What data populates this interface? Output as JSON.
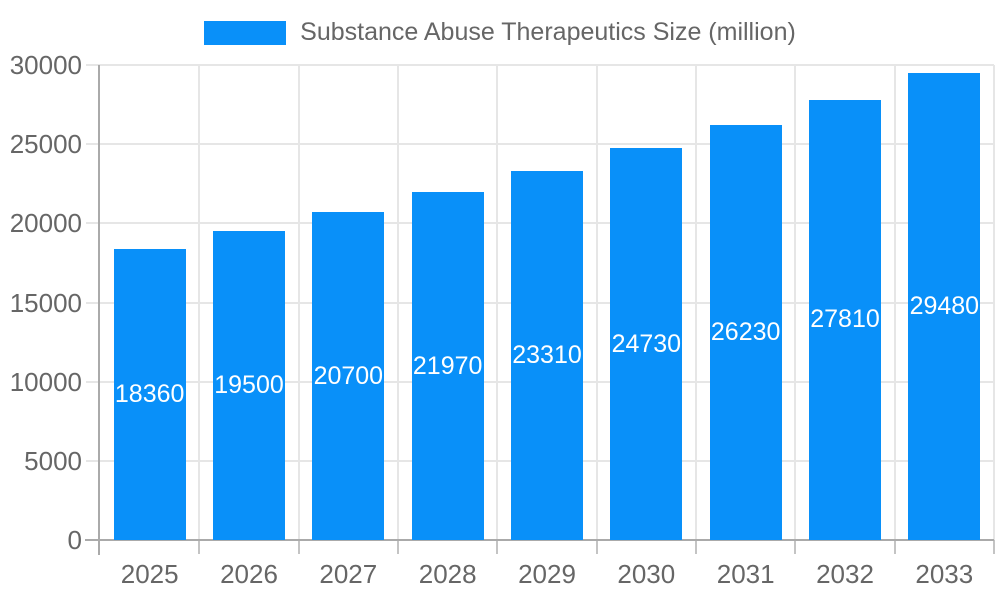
{
  "chart_data": {
    "type": "bar",
    "title": "Substance Abuse Therapeutics Size (million)",
    "legend": [
      "Substance Abuse Therapeutics Size (million)"
    ],
    "legend_position": "top-center",
    "categories": [
      "2025",
      "2026",
      "2027",
      "2028",
      "2029",
      "2030",
      "2031",
      "2032",
      "2033"
    ],
    "series": [
      {
        "name": "Substance Abuse Therapeutics Size (million)",
        "values": [
          18360,
          19500,
          20700,
          21970,
          23310,
          24730,
          26230,
          27810,
          29480
        ]
      }
    ],
    "data_labels": [
      "18360",
      "19500",
      "20700",
      "21970",
      "23310",
      "24730",
      "26230",
      "27810",
      "29480"
    ],
    "xlabel": "",
    "ylabel": "",
    "ylim": [
      0,
      30000
    ],
    "ytick_step": 5000,
    "yticks": [
      0,
      5000,
      10000,
      15000,
      20000,
      25000,
      30000
    ],
    "ytick_labels": [
      "0",
      "5000",
      "10000",
      "15000",
      "20000",
      "25000",
      "30000"
    ],
    "grid": true,
    "data_label_position": "center-of-bar"
  },
  "colors": {
    "bar": "#0990f9",
    "grid_line": "#e6e6e6",
    "axis_line": "#aaaaaa",
    "x_tick_mark": "#c4c4c4",
    "tick_text": "#666666",
    "legend_text": "#666666",
    "data_label": "#ffffff",
    "background": "#ffffff"
  }
}
